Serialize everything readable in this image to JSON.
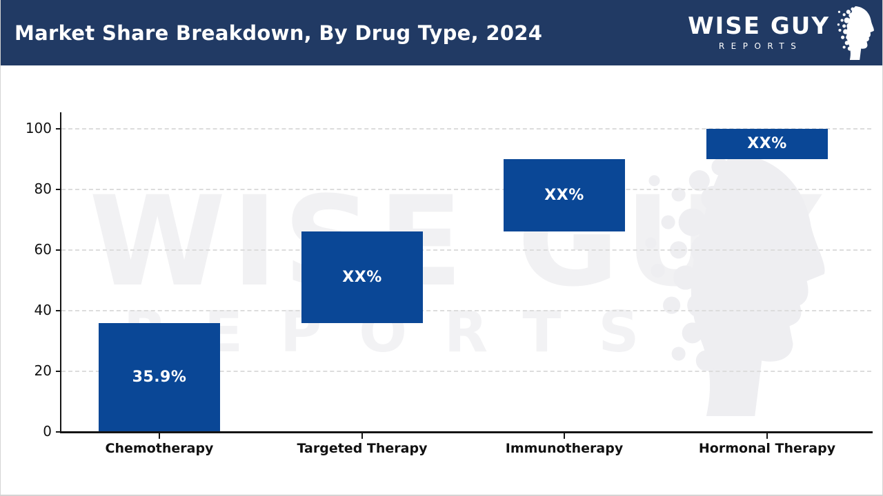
{
  "header": {
    "title": "Market Share Breakdown, By Drug Type, 2024",
    "logo": {
      "name": "Wise Guy Reports",
      "line1": "WISE GUY",
      "line2": "REPORTS"
    }
  },
  "watermark": {
    "line1": "WISE GUY",
    "line2": "REPORTS"
  },
  "chart_data": {
    "type": "bar",
    "subtype": "waterfall",
    "title": "Market Share Breakdown, By Drug Type, 2024",
    "categories": [
      "Chemotherapy",
      "Targeted Therapy",
      "Immunotherapy",
      "Hormonal Therapy"
    ],
    "segments": [
      {
        "category": "Chemotherapy",
        "start": 0,
        "end": 35.9,
        "label": "35.9%"
      },
      {
        "category": "Targeted Therapy",
        "start": 35.9,
        "end": 66,
        "label": "XX%"
      },
      {
        "category": "Immunotherapy",
        "start": 66,
        "end": 90,
        "label": "XX%"
      },
      {
        "category": "Hormonal Therapy",
        "start": 90,
        "end": 100,
        "label": "XX%"
      }
    ],
    "ylim": [
      0,
      100
    ],
    "yticks": [
      0,
      20,
      40,
      60,
      80,
      100
    ],
    "xlabel": "",
    "ylabel": "",
    "grid": "horizontal-dashed",
    "legend": "none",
    "bar_color": "#0A4796",
    "bar_label_color": "#FFFFFF"
  },
  "colors": {
    "header_bg": "#213A64",
    "bar": "#0A4796",
    "axis": "#141414",
    "gridline": "#DCDCDC",
    "watermark": "#F1F1F3",
    "page_bg": "#FFFFFF"
  }
}
